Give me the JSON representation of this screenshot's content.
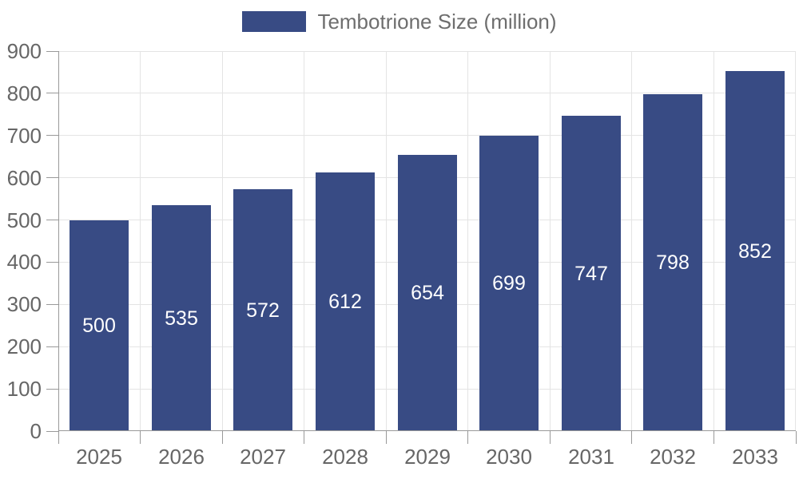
{
  "chart_data": {
    "type": "bar",
    "title": "Tembotrione Size (million)",
    "legend": {
      "label": "Tembotrione Size (million)",
      "position": "top"
    },
    "categories": [
      "2025",
      "2026",
      "2027",
      "2028",
      "2029",
      "2030",
      "2031",
      "2032",
      "2033"
    ],
    "values": [
      500,
      535,
      572,
      612,
      654,
      699,
      747,
      798,
      852
    ],
    "value_labels": [
      "500",
      "535",
      "572",
      "612",
      "654",
      "699",
      "747",
      "798",
      "852"
    ],
    "xlabel": "",
    "ylabel": "",
    "ylim": [
      0,
      900
    ],
    "ytick_step": 100,
    "ytick_labels": [
      "0",
      "100",
      "200",
      "300",
      "400",
      "500",
      "600",
      "700",
      "800",
      "900"
    ],
    "grid": true,
    "colors": {
      "bar": "#384B84",
      "axis": "#999999",
      "grid": "#e4e4e4",
      "tick_label": "#666666",
      "legend_text": "#6e6e6e",
      "value_label": "#ffffff",
      "background": "#ffffff"
    }
  }
}
